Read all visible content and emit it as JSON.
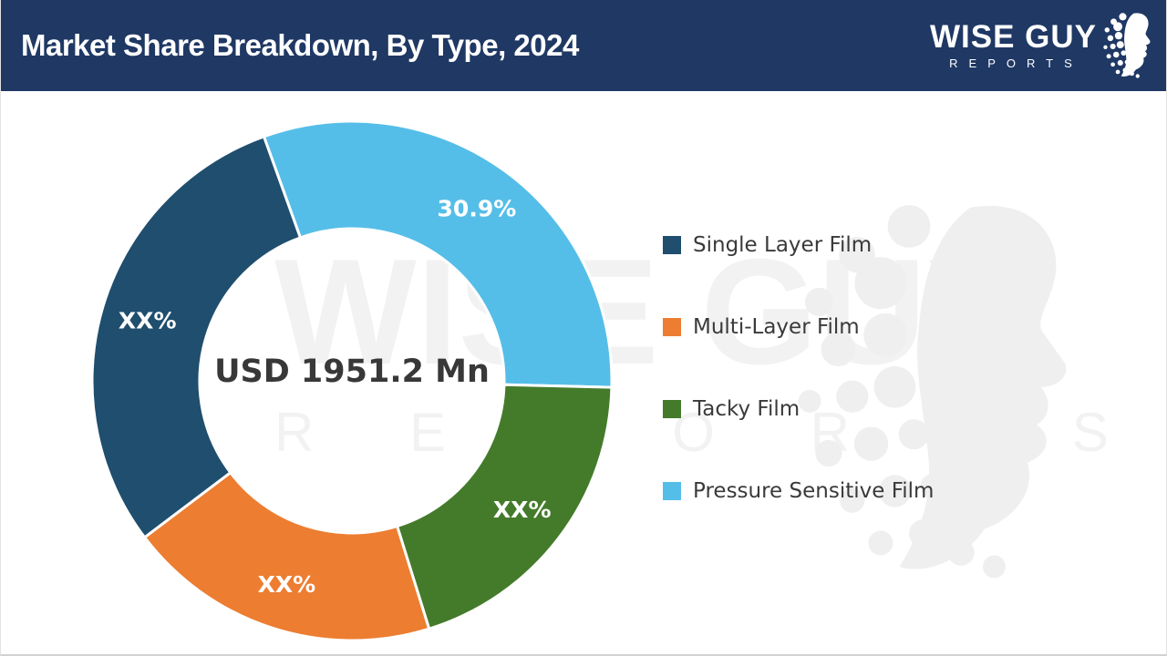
{
  "header": {
    "title": "Market Share Breakdown, By Type, 2024",
    "bg_color": "#1F3864",
    "logo": {
      "wordmark": "WISE GUY",
      "subtitle": "REPORTS"
    }
  },
  "watermark": {
    "wordmark": "WISE GUY",
    "subtitle": "R E P O R T S"
  },
  "chart_data": {
    "type": "pie",
    "variant": "donut",
    "title": "Market Share Breakdown, By Type, 2024",
    "center_text": "USD 1951.2 Mn",
    "start_angle_clockwise_from_top_deg": -19.8,
    "slices_clockwise": [
      {
        "name": "Pressure Sensitive Film",
        "pct": 30.9,
        "data_label": "30.9%",
        "color": "#55BEE8"
      },
      {
        "name": "Tacky Film",
        "pct": 19.8,
        "data_label": "XX%",
        "color": "#447B2B"
      },
      {
        "name": "Multi-Layer Film",
        "pct": 19.5,
        "data_label": "XX%",
        "color": "#ED7D31"
      },
      {
        "name": "Single Layer Film",
        "pct": 29.8,
        "data_label": "XX%",
        "color": "#1F4E6E"
      }
    ],
    "legend_position": "right",
    "legend": [
      {
        "label": "Single Layer Film",
        "color": "#1F4E6E"
      },
      {
        "label": "Multi-Layer Film",
        "color": "#ED7D31"
      },
      {
        "label": "Tacky Film",
        "color": "#447B2B"
      },
      {
        "label": "Pressure Sensitive Film",
        "color": "#55BEE8"
      }
    ]
  }
}
